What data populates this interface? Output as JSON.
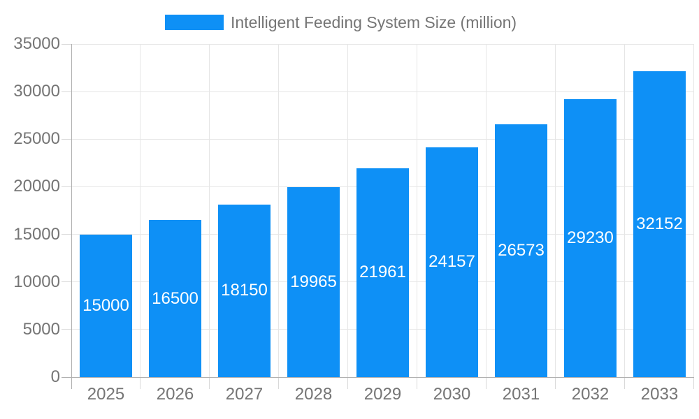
{
  "chart_data": {
    "type": "bar",
    "title": "Intelligent Feeding System Size (million)",
    "categories": [
      "2025",
      "2026",
      "2027",
      "2028",
      "2029",
      "2030",
      "2031",
      "2032",
      "2033"
    ],
    "values": [
      15000,
      16500,
      18150,
      19965,
      21961,
      24157,
      26573,
      29230,
      32152
    ],
    "xlabel": "",
    "ylabel": "",
    "ylim": [
      0,
      35000
    ],
    "yticks": [
      0,
      5000,
      10000,
      15000,
      20000,
      25000,
      30000,
      35000
    ],
    "grid": true,
    "legend_position": "top-center",
    "value_labels": "inside-bar-centered",
    "colors": {
      "bar": "#0e90f6",
      "bar_value_text": "#ffffff",
      "axis_text": "#757575",
      "gridline": "#e6e6e6",
      "tick": "#d9d9d9",
      "axis_line": "#b0b0b0",
      "background": "#ffffff"
    }
  }
}
